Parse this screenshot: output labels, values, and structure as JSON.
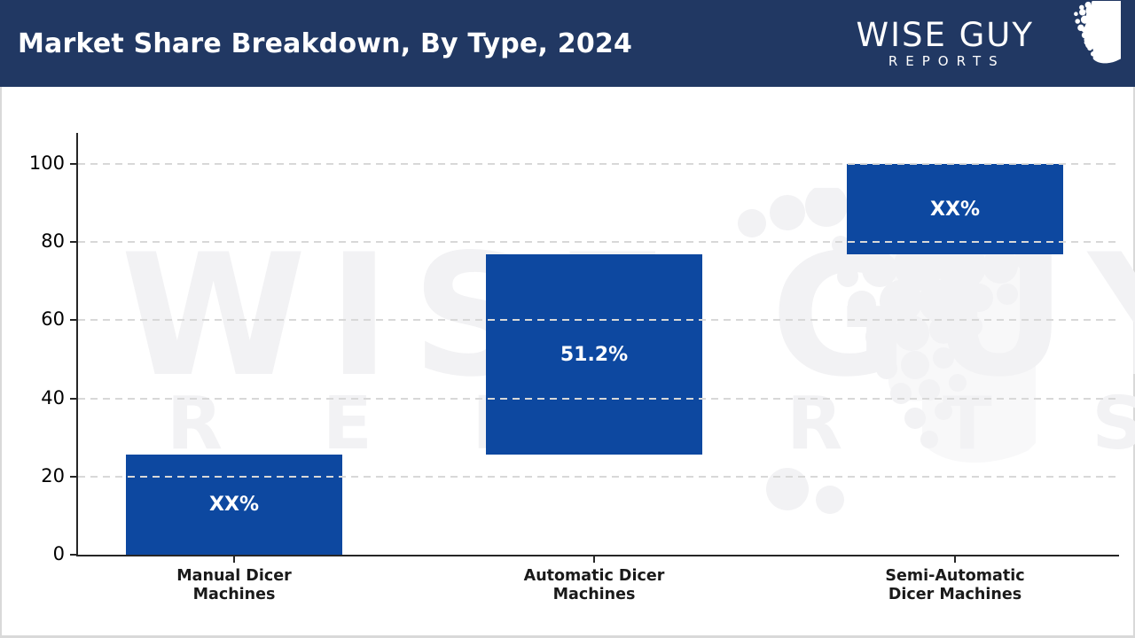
{
  "header": {
    "title": "Market Share Breakdown, By Type, 2024",
    "bg_color": "#213863",
    "logo": {
      "line1": "WISE GUY",
      "line2": "REPORTS"
    }
  },
  "watermark": {
    "line1": "WISE GUY",
    "line2": "R E P O R T S",
    "color": "#f2f2f4"
  },
  "chart_data": {
    "type": "bar",
    "subtype": "floating-segment-bars",
    "title": "Market Share Breakdown, By Type, 2024",
    "xlabel": "",
    "ylabel": "",
    "ylim": [
      0,
      107
    ],
    "yticks": [
      0,
      20,
      40,
      60,
      80,
      100
    ],
    "grid": "dashed horizontal, drawn over bars",
    "legend": false,
    "bar_color": "#0d48a0",
    "grid_color": "#d8d8d8",
    "axis_color": "#262626",
    "bars": [
      {
        "category": "Manual Dicer Machines",
        "label_lines": [
          "Manual Dicer",
          "Machines"
        ],
        "start": 0,
        "end": 25.6,
        "value": null,
        "value_label": "XX%"
      },
      {
        "category": "Automatic Dicer Machines",
        "label_lines": [
          "Automatic Dicer",
          "Machines"
        ],
        "start": 25.6,
        "end": 76.8,
        "value": 51.2,
        "value_label": "51.2%"
      },
      {
        "category": "Semi-Automatic Dicer Machines",
        "label_lines": [
          "Semi-Automatic",
          "Dicer Machines"
        ],
        "start": 76.8,
        "end": 100,
        "value": null,
        "value_label": "XX%"
      }
    ]
  }
}
